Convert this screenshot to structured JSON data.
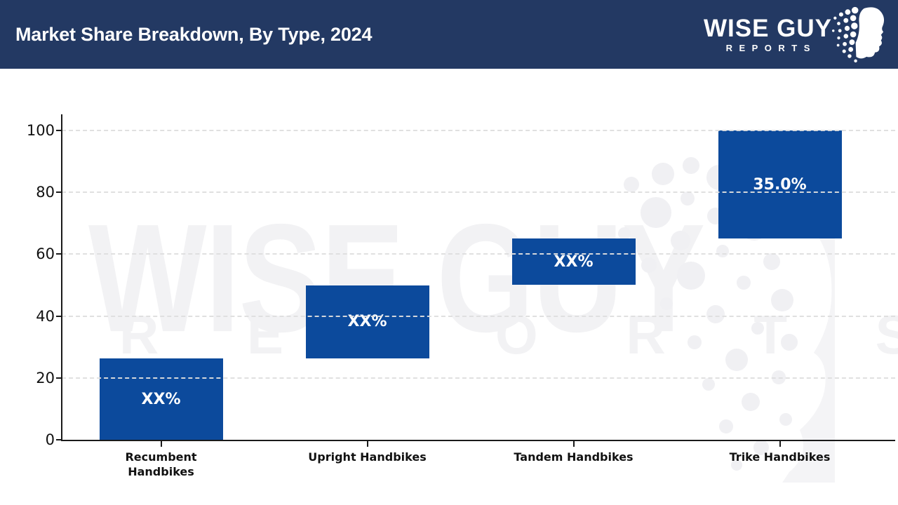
{
  "header": {
    "title": "Market Share Breakdown, By Type, 2024",
    "background_color": "#233963",
    "logo": {
      "line1": "WISE GUY",
      "line2": "REPORTS"
    }
  },
  "chart_data": {
    "type": "bar",
    "subtype": "waterfall",
    "title": "Market Share Breakdown, By Type, 2024",
    "xlabel": "",
    "ylabel": "",
    "ylim": [
      0,
      105
    ],
    "yticks": [
      0,
      20,
      40,
      60,
      80,
      100
    ],
    "grid": "horizontal dashed",
    "legend": "none",
    "bar_color": "#0c4a9c",
    "bar_label_color": "#ffffff",
    "categories": [
      "Recumbent Handbikes",
      "Upright Handbikes",
      "Tandem Handbikes",
      "Trike Handbikes"
    ],
    "category_lines": [
      [
        "Recumbent",
        "Handbikes"
      ],
      [
        "Upright Handbikes"
      ],
      [
        "Tandem Handbikes"
      ],
      [
        "Trike Handbikes"
      ]
    ],
    "segments": [
      {
        "category": "Recumbent Handbikes",
        "start": 0,
        "end": 26.3,
        "label": "XX%"
      },
      {
        "category": "Upright Handbikes",
        "start": 26.3,
        "end": 50,
        "label": "XX%"
      },
      {
        "category": "Tandem Handbikes",
        "start": 50,
        "end": 65,
        "label": "XX%"
      },
      {
        "category": "Trike Handbikes",
        "start": 65,
        "end": 100,
        "label": "35.0%"
      }
    ],
    "watermark": {
      "line1": "WISE GUY",
      "line2": "R E P O R T S"
    }
  }
}
